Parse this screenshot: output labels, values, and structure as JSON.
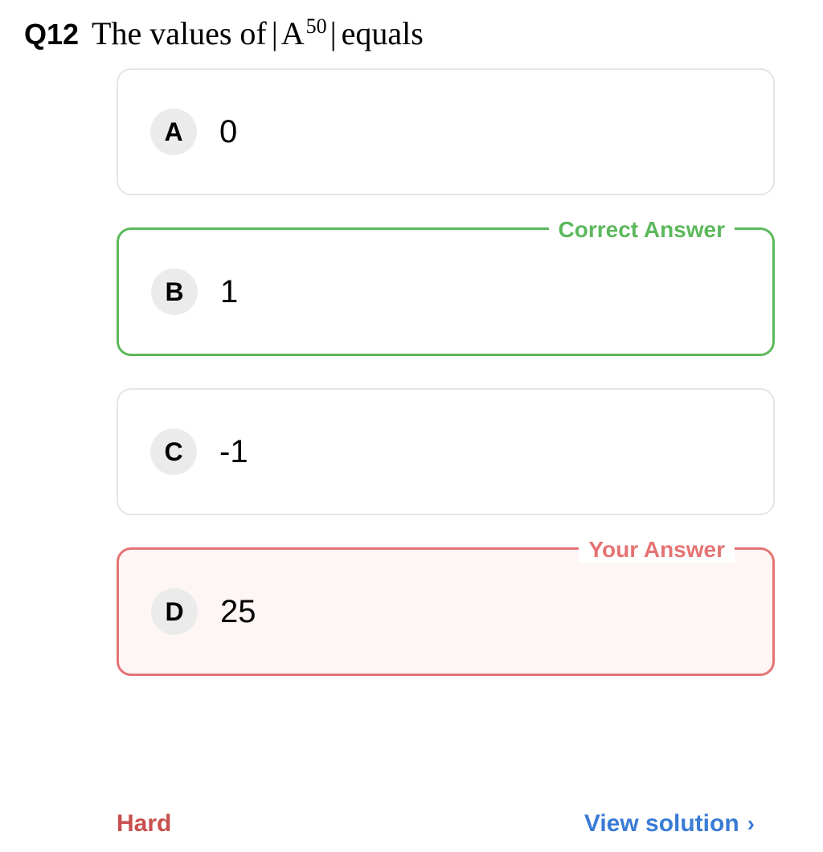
{
  "question": {
    "number": "Q12",
    "text_before": "The values of ",
    "math_bar1": "|",
    "math_base": "A",
    "math_sup": "50",
    "math_bar2": "|",
    "text_after": " equals"
  },
  "options": [
    {
      "letter": "A",
      "value": "0",
      "state": "default"
    },
    {
      "letter": "B",
      "value": "1",
      "state": "correct"
    },
    {
      "letter": "C",
      "value": "-1",
      "state": "default"
    },
    {
      "letter": "D",
      "value": "25",
      "state": "your"
    }
  ],
  "badges": {
    "correct": "Correct Answer",
    "your": "Your Answer"
  },
  "footer": {
    "difficulty": "Hard",
    "view_solution": "View solution"
  },
  "colors": {
    "correct_border": "#5cb85c",
    "your_border": "#e57373",
    "default_border": "#e5e5e5",
    "your_bg": "#fef5f5",
    "letter_bg": "#ebebeb",
    "difficulty": "#c94f4f",
    "link": "#3a7bd5"
  }
}
